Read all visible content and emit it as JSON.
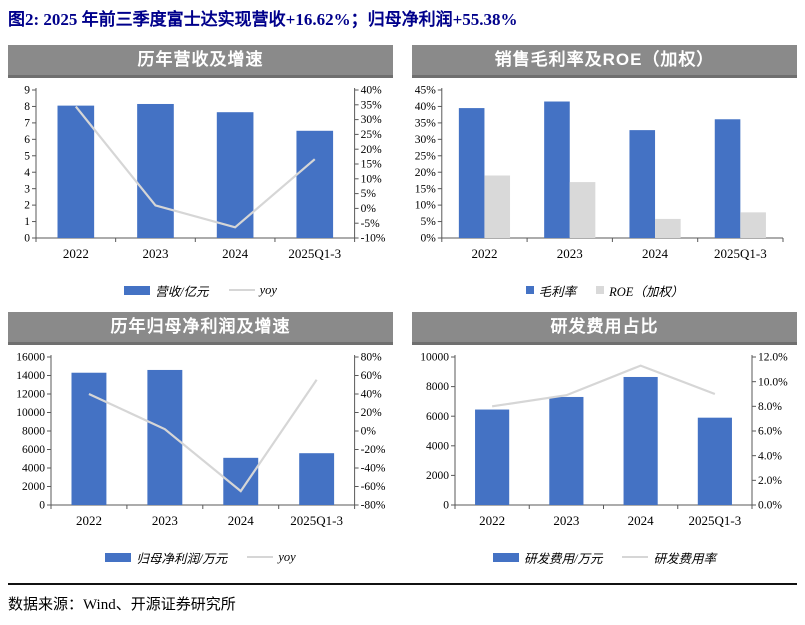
{
  "figure": {
    "title": "图2:  2025 年前三季度富士达实现营收+16.62%；归母净利润+55.38%",
    "source": "数据来源：Wind、开源证券研究所"
  },
  "colors": {
    "bar_blue": "#4472C4",
    "bar_gray": "#D9D9D9",
    "line_gray": "#D6D6D6",
    "header_bg": "#8A8A8A",
    "header_text": "#FFFFFF",
    "title_navy": "#00008B",
    "axis": "#595959"
  },
  "chart_data": [
    {
      "type": "bar-line",
      "title": "历年营收及增速",
      "categories": [
        "2022",
        "2023",
        "2024",
        "2025Q1-3"
      ],
      "bars": [
        {
          "name": "营收/亿元",
          "color": "#4472C4",
          "values": [
            8.05,
            8.15,
            7.65,
            6.52
          ]
        }
      ],
      "lines": [
        {
          "name": "yoy",
          "color": "#D6D6D6",
          "values": [
            34.4,
            1.0,
            -6.4,
            16.62
          ]
        }
      ],
      "left_axis": {
        "min": 0,
        "max": 9,
        "tick_values": [
          0,
          1,
          2,
          3,
          4,
          5,
          6,
          7,
          8,
          9
        ],
        "tick_labels": [
          "0",
          "1",
          "2",
          "3",
          "4",
          "5",
          "6",
          "7",
          "8",
          "9"
        ]
      },
      "right_axis": {
        "min": -10,
        "max": 40,
        "tick_values": [
          -10,
          -5,
          0,
          5,
          10,
          15,
          20,
          25,
          30,
          35,
          40
        ],
        "tick_labels": [
          "-10%",
          "-5%",
          "0%",
          "5%",
          "10%",
          "15%",
          "20%",
          "25%",
          "30%",
          "35%",
          "40%"
        ]
      },
      "legend_style": "wide",
      "grid": "off",
      "legend_position": "bottom"
    },
    {
      "type": "bar",
      "title": "销售毛利率及ROE（加权）",
      "categories": [
        "2022",
        "2023",
        "2024",
        "2025Q1-3"
      ],
      "bars": [
        {
          "name": "毛利率",
          "color": "#4472C4",
          "values": [
            39.5,
            41.5,
            32.8,
            36.1
          ]
        },
        {
          "name": "ROE（加权）",
          "color": "#D9D9D9",
          "values": [
            19.0,
            17.0,
            5.8,
            7.8
          ]
        }
      ],
      "lines": [],
      "left_axis": {
        "min": 0,
        "max": 45,
        "tick_values": [
          0,
          5,
          10,
          15,
          20,
          25,
          30,
          35,
          40,
          45
        ],
        "tick_labels": [
          "0%",
          "5%",
          "10%",
          "15%",
          "20%",
          "25%",
          "30%",
          "35%",
          "40%",
          "45%"
        ]
      },
      "legend_style": "square",
      "grid": "off",
      "legend_position": "bottom"
    },
    {
      "type": "bar-line",
      "title": "历年归母净利润及增速",
      "categories": [
        "2022",
        "2023",
        "2024",
        "2025Q1-3"
      ],
      "bars": [
        {
          "name": "归母净利润/万元",
          "color": "#4472C4",
          "values": [
            14300,
            14600,
            5100,
            5600
          ]
        }
      ],
      "lines": [
        {
          "name": "yoy",
          "color": "#D6D6D6",
          "values": [
            40.0,
            2.0,
            -65.0,
            55.38
          ]
        }
      ],
      "left_axis": {
        "min": 0,
        "max": 16000,
        "tick_values": [
          0,
          2000,
          4000,
          6000,
          8000,
          10000,
          12000,
          14000,
          16000
        ],
        "tick_labels": [
          "0",
          "2000",
          "4000",
          "6000",
          "8000",
          "10000",
          "12000",
          "14000",
          "16000"
        ]
      },
      "right_axis": {
        "min": -80,
        "max": 80,
        "tick_values": [
          -80,
          -60,
          -40,
          -20,
          0,
          20,
          40,
          60,
          80
        ],
        "tick_labels": [
          "-80%",
          "-60%",
          "-40%",
          "-20%",
          "0%",
          "20%",
          "40%",
          "60%",
          "80%"
        ]
      },
      "legend_style": "wide",
      "grid": "off",
      "legend_position": "bottom"
    },
    {
      "type": "bar-line",
      "title": "研发费用占比",
      "categories": [
        "2022",
        "2023",
        "2024",
        "2025Q1-3"
      ],
      "bars": [
        {
          "name": "研发费用/万元",
          "color": "#4472C4",
          "values": [
            6450,
            7300,
            8650,
            5900
          ]
        }
      ],
      "lines": [
        {
          "name": "研发费用率",
          "color": "#D6D6D6",
          "values": [
            8.0,
            8.9,
            11.3,
            9.0
          ]
        }
      ],
      "left_axis": {
        "min": 0,
        "max": 10000,
        "tick_values": [
          0,
          2000,
          4000,
          6000,
          8000,
          10000
        ],
        "tick_labels": [
          "0",
          "2000",
          "4000",
          "6000",
          "8000",
          "10000"
        ]
      },
      "right_axis": {
        "min": 0,
        "max": 12,
        "tick_values": [
          0,
          2,
          4,
          6,
          8,
          10,
          12
        ],
        "tick_labels": [
          "0.0%",
          "2.0%",
          "4.0%",
          "6.0%",
          "8.0%",
          "10.0%",
          "12.0%"
        ]
      },
      "legend_style": "wide",
      "grid": "off",
      "legend_position": "bottom"
    }
  ]
}
